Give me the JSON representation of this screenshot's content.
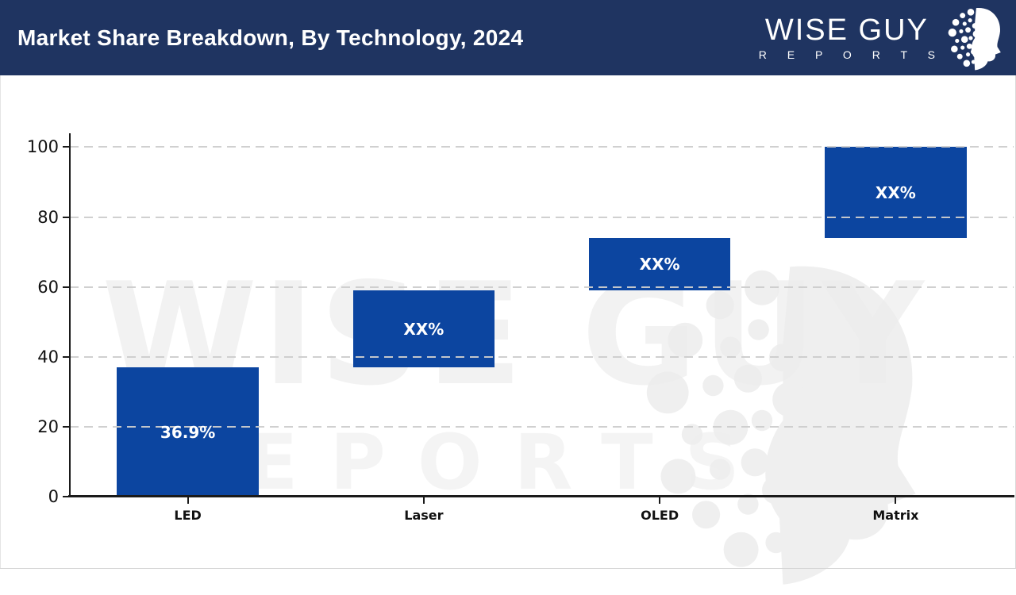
{
  "header": {
    "title": "Market Share Breakdown, By Technology, 2024",
    "background": "#1f3461",
    "logo": {
      "line1": "WISE GUY",
      "line2": "R E P O R T S"
    }
  },
  "watermark": {
    "line1": "WISE GUY",
    "line2": "REPORTS"
  },
  "chart_data": {
    "type": "bar",
    "subtype": "waterfall",
    "title": "Market Share Breakdown, By Technology, 2024",
    "xlabel": "",
    "ylabel": "",
    "categories": [
      "LED",
      "Laser",
      "OLED",
      "Matrix"
    ],
    "bars": [
      {
        "category": "LED",
        "start": 0,
        "end": 36.9,
        "label": "36.9%"
      },
      {
        "category": "Laser",
        "start": 36.9,
        "end": 59.1,
        "label": "XX%"
      },
      {
        "category": "OLED",
        "start": 59.1,
        "end": 73.9,
        "label": "XX%"
      },
      {
        "category": "Matrix",
        "start": 73.9,
        "end": 100,
        "label": "XX%"
      }
    ],
    "yticks": [
      0,
      20,
      40,
      60,
      80,
      100
    ],
    "ylim": [
      0,
      104
    ],
    "grid": true,
    "grid_style": "dashed",
    "legend": false,
    "bar_color": "#0c45a0",
    "label_color": "#ffffff"
  },
  "colors": {
    "header_bg": "#1f3461",
    "bar": "#0c45a0",
    "grid": "#d4d4d4",
    "axis": "#1a1a1a",
    "watermark": "#f1f1f1"
  }
}
